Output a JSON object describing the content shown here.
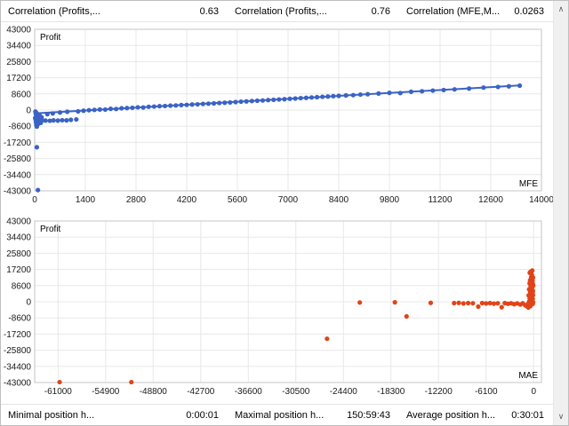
{
  "colors": {
    "mfe_series": "#3b63c5",
    "mae_series": "#e04418",
    "grid": "#e8e8e8",
    "frame": "#c5c5c5",
    "tick_text": "#1a1a1a",
    "scroll_track": "#f0f0f0"
  },
  "header": {
    "stats": [
      {
        "label": "Correlation (Profits,...",
        "value": "0.63"
      },
      {
        "label": "Correlation (Profits,...",
        "value": "0.76"
      },
      {
        "label": "Correlation (MFE,M...",
        "value": "0.0263"
      }
    ]
  },
  "footer": {
    "stats": [
      {
        "label": "Minimal position h...",
        "value": "0:00:01"
      },
      {
        "label": "Maximal position h...",
        "value": "150:59:43"
      },
      {
        "label": "Average position h...",
        "value": "0:30:01"
      }
    ]
  },
  "scrollbar": {
    "up_glyph": "∧",
    "down_glyph": "∨"
  },
  "chart_data": [
    {
      "type": "scatter",
      "title": "Profit",
      "axis_corner_label": "MFE",
      "color": "#3b63c5",
      "point_radius": 2.6,
      "xlim": [
        0,
        14000
      ],
      "ylim": [
        -43000,
        43000
      ],
      "x_ticks": [
        0,
        1400,
        2800,
        4200,
        5600,
        7000,
        8400,
        9800,
        11200,
        12600,
        14000
      ],
      "y_ticks": [
        43000,
        34400,
        25800,
        17200,
        8600,
        0,
        -8600,
        -17200,
        -25800,
        -34400,
        -43000
      ],
      "grid": true,
      "trend": {
        "x1": 0,
        "y1": -1800,
        "x2": 13450,
        "y2": 13150
      },
      "points": [
        [
          15,
          -4200
        ],
        [
          20,
          -800
        ],
        [
          25,
          -5000
        ],
        [
          30,
          -2000
        ],
        [
          35,
          -6500
        ],
        [
          40,
          -3500
        ],
        [
          45,
          -8000
        ],
        [
          50,
          -1500
        ],
        [
          60,
          -8800
        ],
        [
          70,
          -3000
        ],
        [
          80,
          -6000
        ],
        [
          95,
          -7400
        ],
        [
          110,
          -5200
        ],
        [
          130,
          -2600
        ],
        [
          150,
          -4400
        ],
        [
          170,
          -6800
        ],
        [
          190,
          -3800
        ],
        [
          210,
          -5400
        ],
        [
          60,
          -19800
        ],
        [
          90,
          -42600
        ],
        [
          300,
          -5600
        ],
        [
          420,
          -5700
        ],
        [
          520,
          -5500
        ],
        [
          640,
          -5600
        ],
        [
          760,
          -5400
        ],
        [
          880,
          -5500
        ],
        [
          1000,
          -5200
        ],
        [
          1150,
          -5000
        ],
        [
          350,
          -2200
        ],
        [
          500,
          -1800
        ],
        [
          700,
          -1300
        ],
        [
          900,
          -900
        ],
        [
          1200,
          -700
        ],
        [
          1350,
          -350
        ],
        [
          1500,
          -100
        ],
        [
          1650,
          100
        ],
        [
          1800,
          300
        ],
        [
          1950,
          250
        ],
        [
          2100,
          650
        ],
        [
          2250,
          550
        ],
        [
          2400,
          950
        ],
        [
          2550,
          1050
        ],
        [
          2700,
          1200
        ],
        [
          2850,
          1450
        ],
        [
          3000,
          1350
        ],
        [
          3150,
          1750
        ],
        [
          3300,
          1850
        ],
        [
          3450,
          2050
        ],
        [
          3600,
          2150
        ],
        [
          3750,
          2350
        ],
        [
          3900,
          2450
        ],
        [
          4050,
          2650
        ],
        [
          4200,
          2750
        ],
        [
          4350,
          2950
        ],
        [
          4500,
          3050
        ],
        [
          4650,
          3250
        ],
        [
          4800,
          3400
        ],
        [
          4950,
          3550
        ],
        [
          5100,
          3750
        ],
        [
          5250,
          3900
        ],
        [
          5400,
          4050
        ],
        [
          5550,
          4250
        ],
        [
          5700,
          4450
        ],
        [
          5850,
          4600
        ],
        [
          6000,
          4800
        ],
        [
          6150,
          4950
        ],
        [
          6300,
          5100
        ],
        [
          6450,
          5300
        ],
        [
          6600,
          5450
        ],
        [
          6750,
          5650
        ],
        [
          6900,
          5800
        ],
        [
          7050,
          6000
        ],
        [
          7200,
          6150
        ],
        [
          7350,
          6350
        ],
        [
          7500,
          6500
        ],
        [
          7650,
          6700
        ],
        [
          7800,
          6850
        ],
        [
          7950,
          7050
        ],
        [
          8100,
          7200
        ],
        [
          8250,
          7400
        ],
        [
          8400,
          7550
        ],
        [
          8600,
          7800
        ],
        [
          8800,
          7950
        ],
        [
          9000,
          8250
        ],
        [
          9200,
          8450
        ],
        [
          9500,
          8800
        ],
        [
          9800,
          9150
        ],
        [
          10100,
          9050
        ],
        [
          10400,
          9750
        ],
        [
          10700,
          10000
        ],
        [
          11000,
          10350
        ],
        [
          11300,
          10650
        ],
        [
          11600,
          11000
        ],
        [
          12000,
          11450
        ],
        [
          12400,
          11950
        ],
        [
          12800,
          12300
        ],
        [
          13100,
          12650
        ],
        [
          13400,
          13000
        ]
      ]
    },
    {
      "type": "scatter",
      "title": "Profit",
      "axis_corner_label": "MAE",
      "color": "#e04418",
      "point_radius": 2.6,
      "xlim": [
        -64000,
        1000
      ],
      "ylim": [
        -43000,
        43000
      ],
      "x_ticks": [
        -61000,
        -54900,
        -48800,
        -42700,
        -36600,
        -30500,
        -24400,
        -18300,
        -12200,
        -6100,
        0
      ],
      "y_ticks": [
        43000,
        34400,
        25800,
        17200,
        8600,
        0,
        -8600,
        -17200,
        -25800,
        -34400,
        -43000
      ],
      "grid": true,
      "trend": null,
      "points": [
        [
          -60800,
          -42800
        ],
        [
          -51600,
          -42800
        ],
        [
          -26500,
          -19700
        ],
        [
          -22300,
          -400
        ],
        [
          -17800,
          -300
        ],
        [
          -16300,
          -7800
        ],
        [
          -13200,
          -600
        ],
        [
          -10200,
          -700
        ],
        [
          -9600,
          -600
        ],
        [
          -9000,
          -900
        ],
        [
          -8400,
          -700
        ],
        [
          -7800,
          -800
        ],
        [
          -7100,
          -2600
        ],
        [
          -6600,
          -700
        ],
        [
          -6100,
          -900
        ],
        [
          -5600,
          -700
        ],
        [
          -5100,
          -1000
        ],
        [
          -4600,
          -800
        ],
        [
          -4100,
          -2900
        ],
        [
          -3700,
          -700
        ],
        [
          -3300,
          -1100
        ],
        [
          -2900,
          -800
        ],
        [
          -2500,
          -1300
        ],
        [
          -2100,
          -900
        ],
        [
          -1700,
          -1500
        ],
        [
          -1400,
          -800
        ],
        [
          -1100,
          -1800
        ],
        [
          -900,
          -2300
        ],
        [
          -700,
          -1000
        ],
        [
          -680,
          -3100
        ],
        [
          -620,
          -1600
        ],
        [
          -560,
          200
        ],
        [
          -500,
          1800
        ],
        [
          -640,
          3400
        ],
        [
          -440,
          5000
        ],
        [
          -580,
          6600
        ],
        [
          -380,
          8200
        ],
        [
          -520,
          9800
        ],
        [
          -460,
          11400
        ],
        [
          -320,
          13000
        ],
        [
          -260,
          14600
        ],
        [
          -400,
          16000
        ],
        [
          -180,
          16600
        ],
        [
          -300,
          700
        ],
        [
          -240,
          2600
        ],
        [
          -160,
          4300
        ],
        [
          -120,
          6000
        ],
        [
          -200,
          7700
        ],
        [
          -100,
          9400
        ],
        [
          -140,
          11100
        ],
        [
          -80,
          12800
        ],
        [
          -220,
          14000
        ],
        [
          -260,
          -700
        ],
        [
          -340,
          -1500
        ],
        [
          -420,
          -2400
        ],
        [
          -120,
          1500
        ],
        [
          -80,
          3500
        ],
        [
          -60,
          8600
        ],
        [
          -100,
          5500
        ],
        [
          -180,
          10200
        ],
        [
          -300,
          12000
        ],
        [
          -500,
          15400
        ],
        [
          -70,
          -300
        ],
        [
          -110,
          -1100
        ]
      ]
    }
  ]
}
